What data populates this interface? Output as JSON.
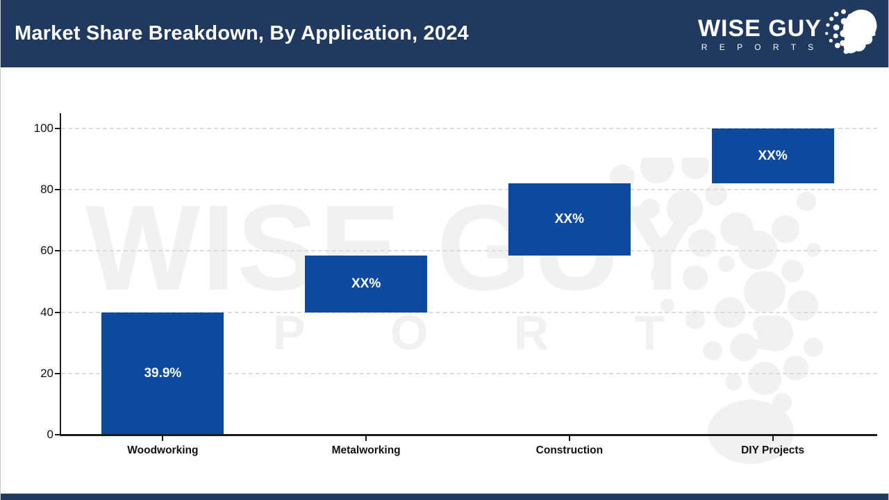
{
  "header": {
    "title": "Market Share Breakdown, By Application, 2024",
    "logo_line1": "WISE GUY",
    "logo_line2": "R E P O R T S"
  },
  "watermark": {
    "line1": "WISE GUY",
    "line2": "P O R T S"
  },
  "chart_data": {
    "type": "bar",
    "variant": "floating-segment-breakdown",
    "title": "Market Share Breakdown, By Application, 2024",
    "categories": [
      "Woodworking",
      "Metalworking",
      "Construction",
      "DIY Projects"
    ],
    "segments": [
      {
        "category": "Woodworking",
        "start": 0,
        "end": 39.9,
        "label": "39.9%"
      },
      {
        "category": "Metalworking",
        "start": 40,
        "end": 58.5,
        "label": "XX%"
      },
      {
        "category": "Construction",
        "start": 58.5,
        "end": 82,
        "label": "XX%"
      },
      {
        "category": "DIY Projects",
        "start": 82,
        "end": 100,
        "label": "XX%"
      }
    ],
    "ylim": [
      0,
      100
    ],
    "yticks": [
      0,
      20,
      40,
      60,
      80,
      100
    ],
    "grid": "horizontal-dashed",
    "legend": "none",
    "bar_color": "#0B4A9F",
    "label_color": "#FFFFFF"
  },
  "colors": {
    "header_bg": "#20395F",
    "bar": "#0B4A9F",
    "grid": "#DCDCDC",
    "watermark": "#F1F1F2",
    "axis": "#1A1A1A"
  }
}
